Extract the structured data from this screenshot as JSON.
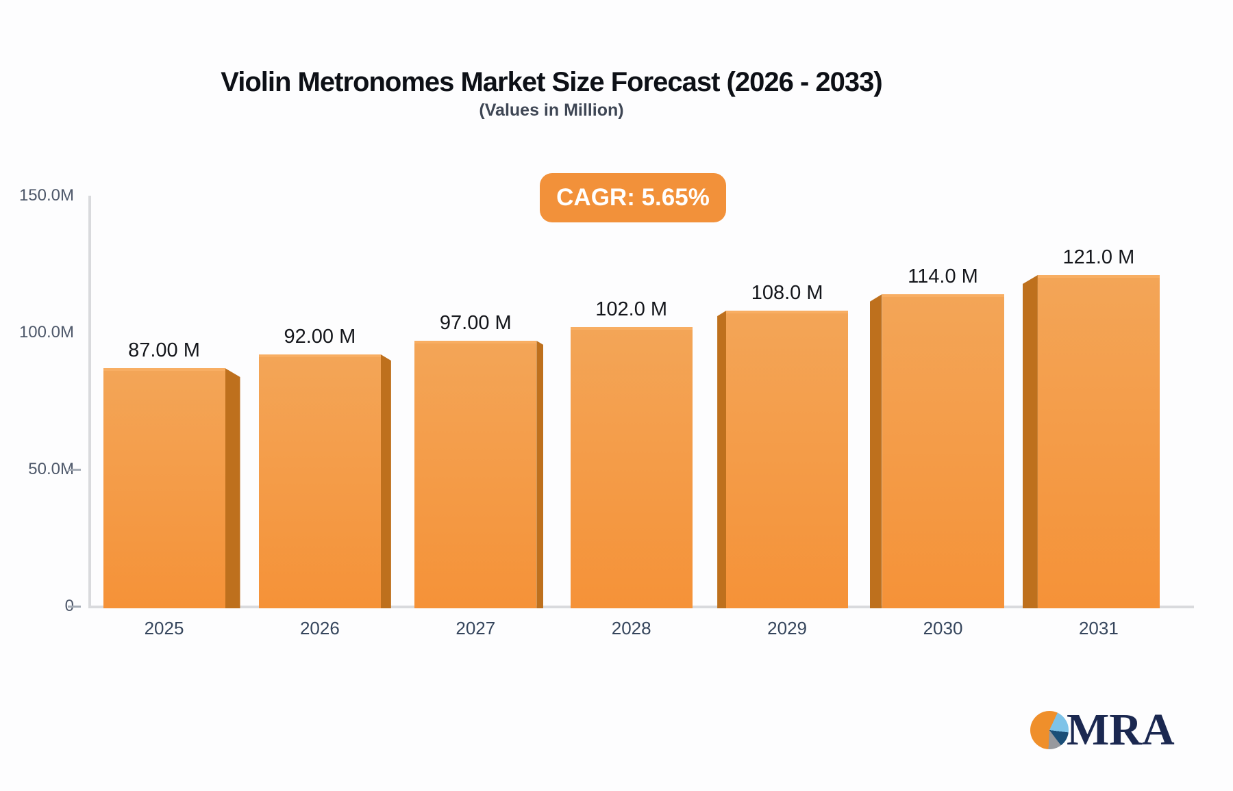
{
  "header": {
    "title": "Violin Metronomes Market Size Forecast (2026 - 2033)",
    "subtitle": "(Values in Million)"
  },
  "badge": {
    "label": "CAGR: 5.65%",
    "bg_color": "#f2913a",
    "text_color": "#ffffff"
  },
  "chart_data": {
    "type": "bar",
    "title": "Violin Metronomes Market Size Forecast (2026 - 2033)",
    "subtitle": "(Values in Million)",
    "cagr": "CAGR: 5.65%",
    "categories": [
      "2025",
      "2026",
      "2027",
      "2028",
      "2029",
      "2030",
      "2031"
    ],
    "values": [
      87,
      92,
      97,
      102,
      108,
      114,
      121
    ],
    "value_labels": [
      "87.00 M",
      "92.00 M",
      "97.00 M",
      "102.0 M",
      "108.0 M",
      "114.0 M",
      "121.0 M"
    ],
    "xlabel": "",
    "ylabel": "",
    "ylim": [
      0,
      150
    ],
    "yticks": [
      {
        "label": "150.0M",
        "value": 150,
        "dash": false
      },
      {
        "label": "100.0M",
        "value": 100,
        "dash": false
      },
      {
        "label": "50.0M",
        "value": 50,
        "dash": true
      },
      {
        "label": "0",
        "value": 0,
        "dash": true
      }
    ],
    "grid": false,
    "legend": "none",
    "bar_color_top": "#f3a557",
    "bar_color_bottom": "#f59238",
    "bar_side_color": "#be701d",
    "axis_color": "#d9dadd"
  },
  "logo": {
    "text": "MRA",
    "text_color": "#1b2850",
    "pie_colors": {
      "orange": "#ef8f2b",
      "light_blue": "#7ec3e8",
      "navy": "#1a4e77",
      "gray": "#97999e"
    }
  }
}
